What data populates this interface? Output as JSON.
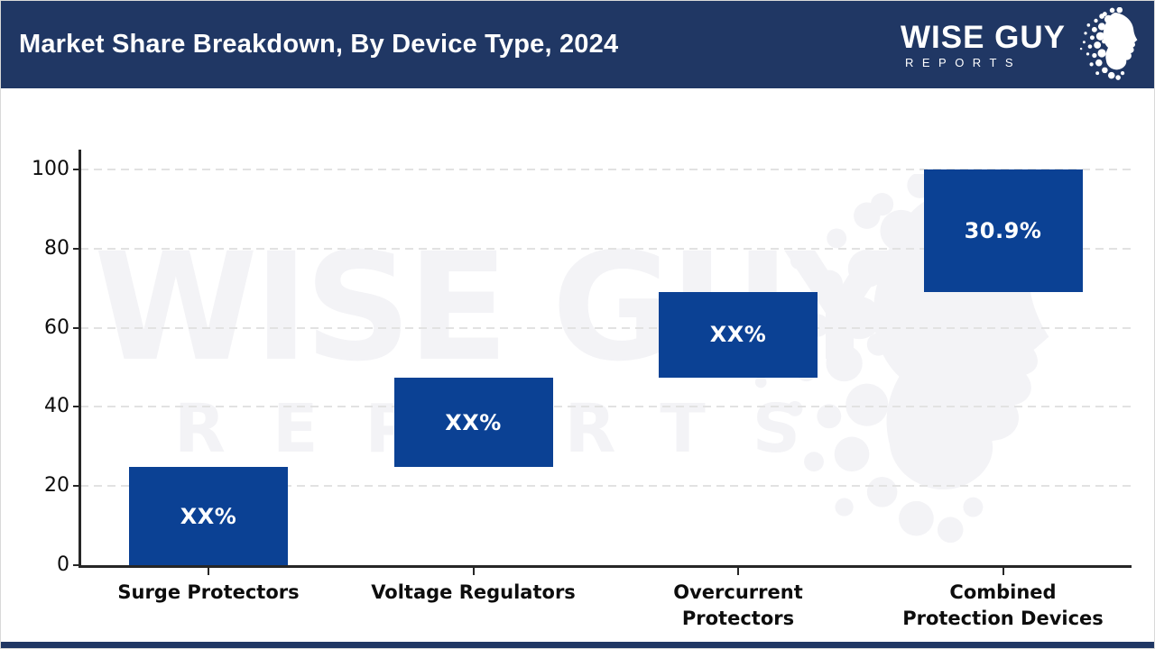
{
  "header": {
    "title": "Market Share Breakdown, By Device Type, 2024",
    "logo": {
      "name": "WISE GUY",
      "sub": "REPORTS"
    }
  },
  "watermark": {
    "line1": "WISE GUY",
    "line2": "REPORTS"
  },
  "chart_data": {
    "type": "bar",
    "subtype": "waterfall",
    "title": "Market Share Breakdown, By Device Type, 2024",
    "categories": [
      [
        "Surge Protectors"
      ],
      [
        "Voltage Regulators"
      ],
      [
        "Overcurrent",
        "Protectors"
      ],
      [
        "Combined",
        "Protection Devices"
      ]
    ],
    "series": [
      {
        "name": "Market Share (%)",
        "segments": [
          {
            "start": 0,
            "end": 24.8,
            "label": "XX%"
          },
          {
            "start": 24.8,
            "end": 47.4,
            "label": "XX%"
          },
          {
            "start": 47.4,
            "end": 69.1,
            "label": "XX%"
          },
          {
            "start": 69.1,
            "end": 100,
            "label": "30.9%"
          }
        ]
      }
    ],
    "xlabel": "",
    "ylabel": "",
    "ylim": [
      0,
      100
    ],
    "yticks": [
      0,
      20,
      40,
      60,
      80,
      100
    ],
    "grid": "horizontal-dashed",
    "legend": "none"
  },
  "colors": {
    "header_bg": "#203764",
    "footer_bg": "#203764",
    "bar": "#0b4194",
    "bar_label": "#ffffff",
    "grid": "#e2e2e2",
    "axis": "#262626",
    "watermark": "#f3f3f6",
    "frame_border": "#d9d9d9"
  }
}
